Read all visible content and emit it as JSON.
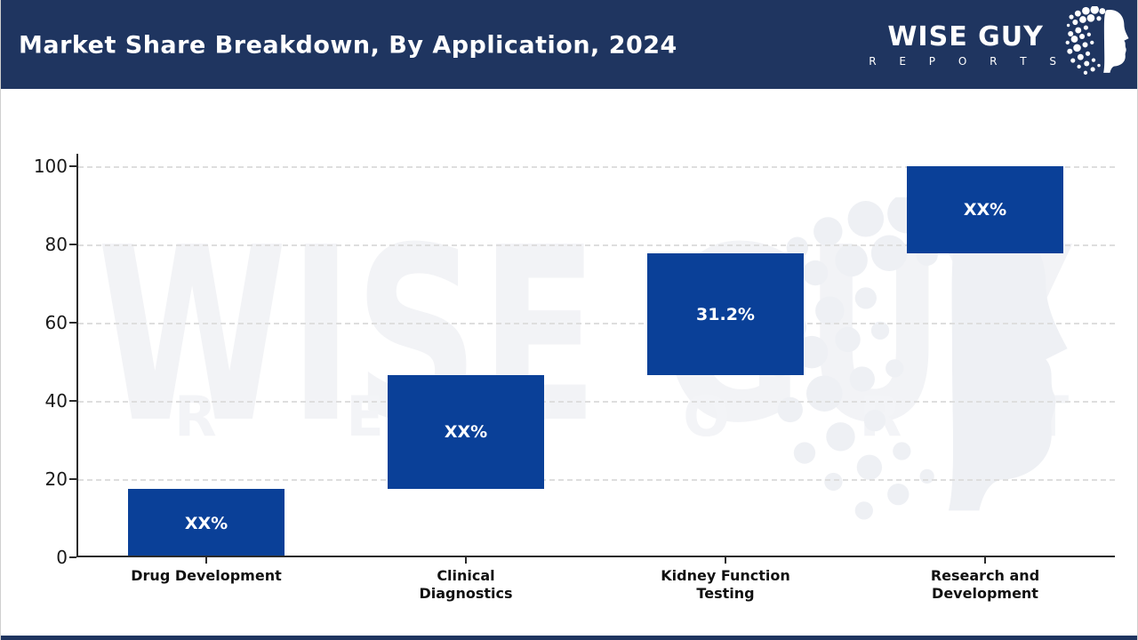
{
  "header": {
    "title": "Market Share Breakdown, By Application, 2024",
    "logo_primary": "WISE GUY",
    "logo_secondary": "R E P O R T S"
  },
  "watermark": {
    "primary": "WISE GUY",
    "secondary": "R E P O R T S"
  },
  "chart_data": {
    "type": "bar",
    "subtype": "waterfall",
    "title": "Market Share Breakdown, By Application, 2024",
    "categories": [
      "Drug Development",
      "Clinical Diagnostics",
      "Kidney Function Testing",
      "Research and Development"
    ],
    "category_lines": [
      [
        "Drug Development"
      ],
      [
        "Clinical",
        "Diagnostics"
      ],
      [
        "Kidney Function",
        "Testing"
      ],
      [
        "Research and",
        "Development"
      ]
    ],
    "series": [
      {
        "name": "Market share (%)",
        "starts": [
          0,
          17.5,
          46.5,
          77.7
        ],
        "values": [
          17.5,
          29.0,
          31.2,
          22.3
        ]
      }
    ],
    "bar_labels": [
      "XX%",
      "XX%",
      "31.2%",
      "XX%"
    ],
    "ylim": [
      0,
      100
    ],
    "yticks": [
      0,
      20,
      40,
      60,
      80,
      100
    ],
    "xlabel": "",
    "ylabel": "",
    "grid": "horizontal-dashed",
    "legend": "none",
    "bar_color": "#0a4098",
    "header_color": "#1f3560",
    "watermark_color": "#f2f3f6"
  }
}
